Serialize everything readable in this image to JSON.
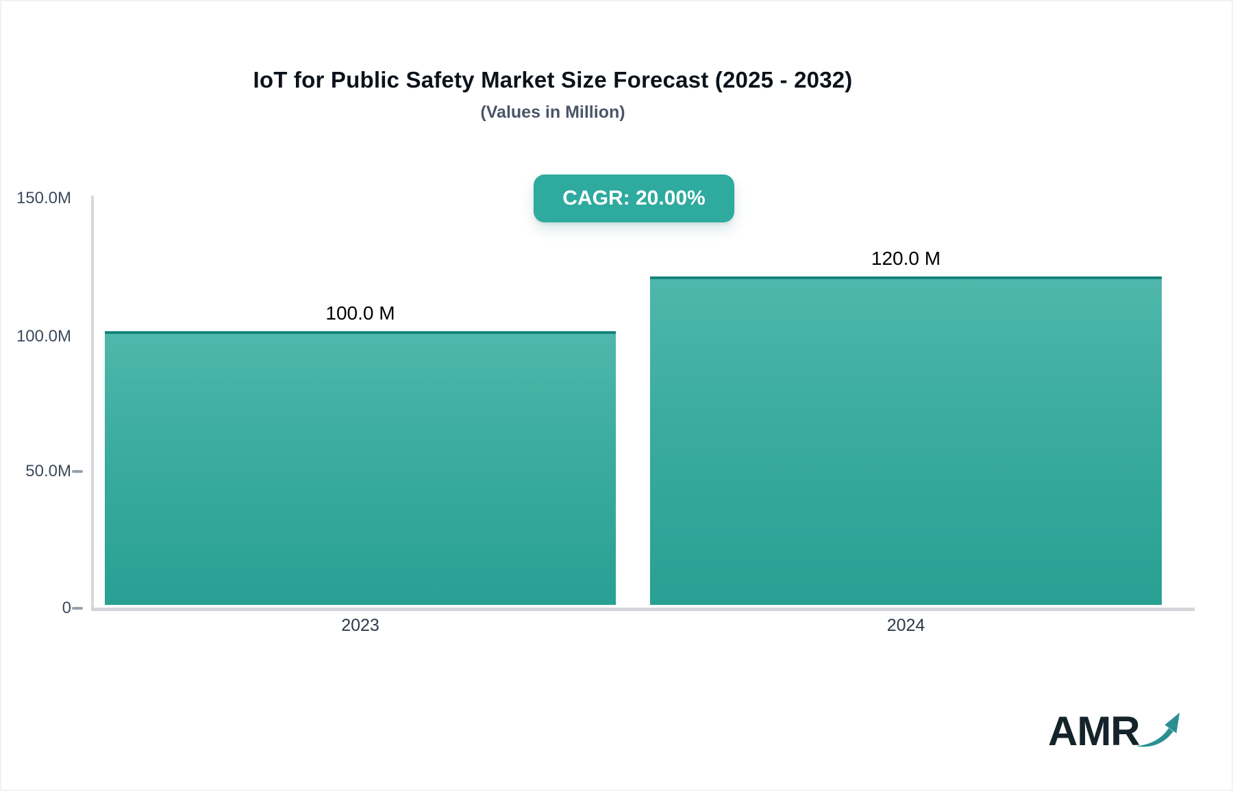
{
  "page": {
    "background": "#ffffff",
    "border_color": "#eef1f5"
  },
  "header": {
    "title": "IoT for Public Safety Market Size Forecast (2025 - 2032)",
    "subtitle": "(Values in Million)"
  },
  "badge": {
    "label": "CAGR: 20.00%",
    "bg_color": "#2faa9f",
    "text_color": "#ffffff"
  },
  "chart_data": {
    "type": "bar",
    "title": "IoT for Public Safety Market Size Forecast (2025 - 2032)",
    "subtitle": "(Values in Million)",
    "unit": "Million",
    "categories": [
      "2023",
      "2024"
    ],
    "values": [
      100.0,
      120.0
    ],
    "value_labels": [
      "100.0 M",
      "120.0 M"
    ],
    "cagr_percent": 20.0,
    "ylim": [
      0,
      150
    ],
    "yticks": [
      {
        "value": 150,
        "label": "150.0M",
        "tick_mark": false
      },
      {
        "value": 100,
        "label": "100.0M",
        "tick_mark": false
      },
      {
        "value": 50,
        "label": "50.0M",
        "tick_mark": true
      },
      {
        "value": 0,
        "label": "0",
        "tick_mark": true
      }
    ],
    "grid": false,
    "legend": false,
    "bar_gradient_top": "#4fb7ac",
    "bar_gradient_bottom": "#28a093",
    "bar_top_border": "#17837c",
    "axis_color": "#d3d7dc",
    "ylabel_color": "#3d4a5c",
    "xlabel_color": "#2e3a49",
    "value_label_color": "#000000"
  },
  "logo": {
    "text": "AMR",
    "text_color": "#15232b",
    "arrow_color": "#2b8f92"
  }
}
